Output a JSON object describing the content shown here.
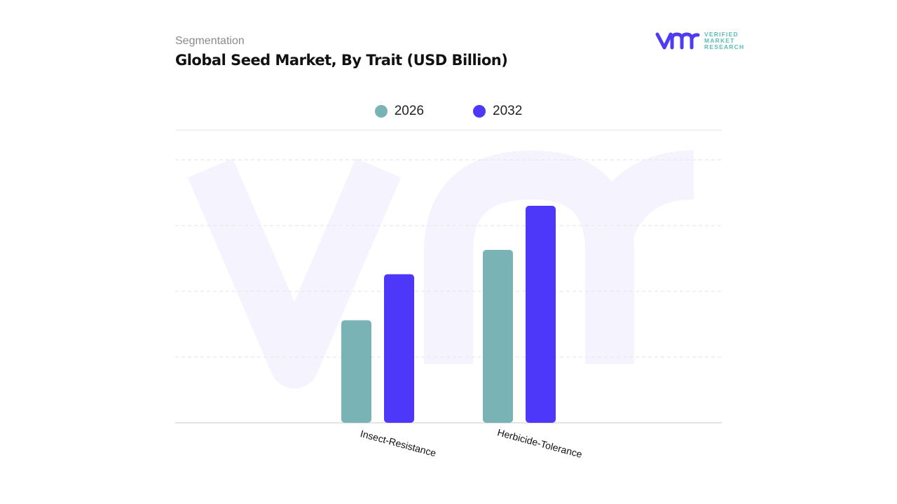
{
  "header": {
    "segment_label": "Segmentation",
    "title": "Global Seed Market, By Trait (USD Billion)"
  },
  "logo": {
    "brand_lines": [
      "VERIFIED",
      "MARKET",
      "RESEARCH"
    ],
    "color_mark": "#4f3cf0",
    "color_text": "#5bbcb5"
  },
  "chart_data": {
    "type": "bar",
    "title": "Global Seed Market, By Trait (USD Billion)",
    "categories": [
      "Insect-Resistance",
      "Herbicide-Tolerance"
    ],
    "series": [
      {
        "name": "2026",
        "color": "#7ab3b6",
        "values": [
          1.56,
          2.63
        ]
      },
      {
        "name": "2032",
        "color": "#4d38f9",
        "values": [
          2.26,
          3.3
        ]
      }
    ],
    "ylim": [
      0,
      4.45
    ],
    "ytick_labels_shown": false,
    "grid": true,
    "legend_position": "top-center",
    "xlabel": "",
    "ylabel": ""
  }
}
